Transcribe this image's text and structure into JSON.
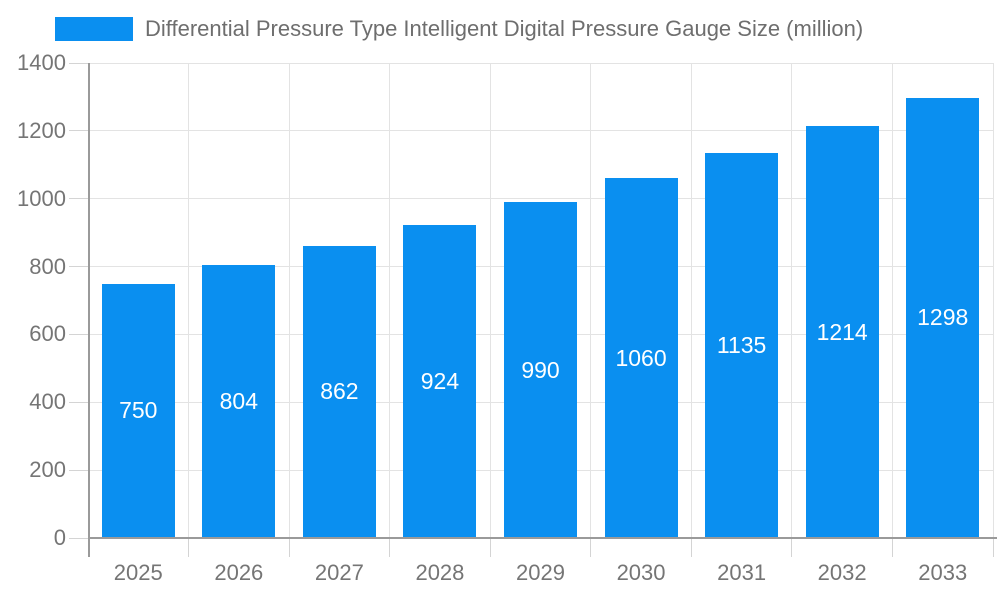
{
  "legend": {
    "series_label": "Differential Pressure Type Intelligent Digital Pressure Gauge Size (million)"
  },
  "chart_data": {
    "type": "bar",
    "title": "Differential Pressure Type Intelligent Digital Pressure Gauge Size (million)",
    "categories": [
      "2025",
      "2026",
      "2027",
      "2028",
      "2029",
      "2030",
      "2031",
      "2032",
      "2033"
    ],
    "series": [
      {
        "name": "Differential Pressure Type Intelligent Digital Pressure Gauge Size (million)",
        "values": [
          750,
          804,
          862,
          924,
          990,
          1060,
          1135,
          1214,
          1298
        ]
      }
    ],
    "xlabel": "",
    "ylabel": "",
    "ylim": [
      0,
      1400
    ],
    "yticks": [
      0,
      200,
      400,
      600,
      800,
      1000,
      1200,
      1400
    ],
    "grid": {
      "horizontal": true,
      "vertical": true
    },
    "legend_position": "top-center",
    "value_labels": "inside-center"
  },
  "colors": {
    "bar": "#0a8ff0",
    "axis_text": "#757575",
    "legend_text": "#6e6e6e",
    "grid_line": "#e3e3e3",
    "axis_line": "#9a9a9a",
    "tick_line": "#d4d4d4",
    "value_label_text": "#ffffff",
    "background": "#ffffff"
  }
}
